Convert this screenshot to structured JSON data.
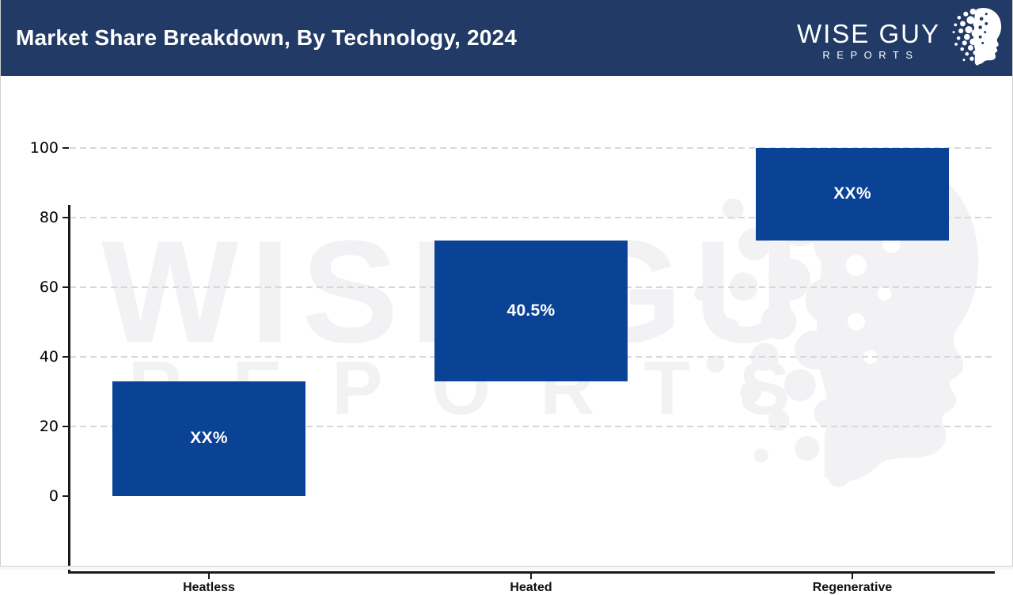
{
  "header": {
    "title": "Market Share Breakdown, By Technology, 2024",
    "logo": {
      "wordmark": "WISE GUY",
      "subtext": "REPORTS"
    }
  },
  "watermark": {
    "wordmark": "WISE GUY",
    "subtext": "REPORTS"
  },
  "colors": {
    "header_bg": "#213a66",
    "bar_fill": "#0a4296",
    "bar_label": "#ffffff",
    "gridline": "#d8d8d8",
    "axis": "#1a1a1a",
    "watermark": "#f2f2f4"
  },
  "chart_data": {
    "type": "bar",
    "subtype": "waterfall",
    "title": "Market Share Breakdown, By Technology, 2024",
    "categories": [
      "Heatless",
      "Heated",
      "Regenerative"
    ],
    "bars": [
      {
        "category": "Heatless",
        "start": 0,
        "end": 33,
        "height": 33,
        "label": "XX%"
      },
      {
        "category": "Heated",
        "start": 33,
        "end": 73.5,
        "height": 40.5,
        "label": "40.5%"
      },
      {
        "category": "Regenerative",
        "start": 73.5,
        "end": 100,
        "height": 26.5,
        "label": "XX%"
      }
    ],
    "ylim": [
      0,
      100
    ],
    "y_ticks": [
      0,
      20,
      40,
      60,
      80,
      100
    ],
    "grid": "horizontal dashed",
    "legend": "none",
    "xlabel": "",
    "ylabel": ""
  }
}
